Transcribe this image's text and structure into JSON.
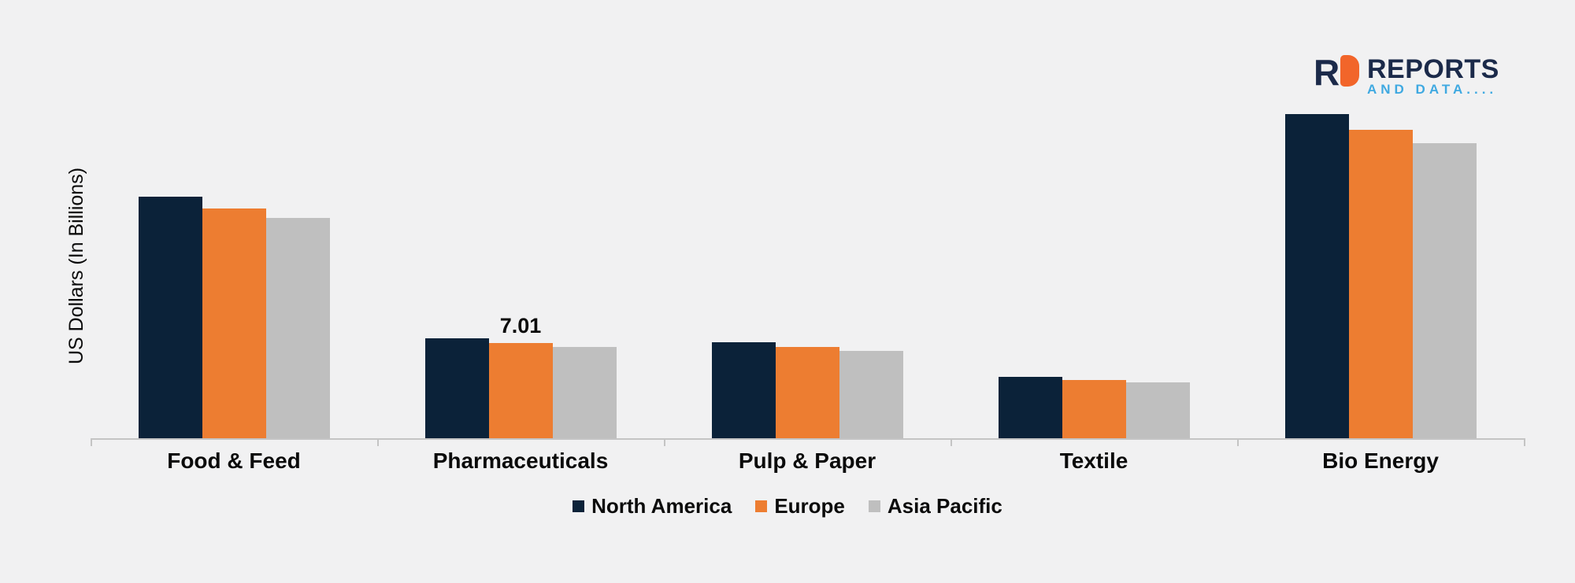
{
  "page": {
    "background": "#F1F1F2"
  },
  "logo": {
    "icon_letter": "R",
    "title": "REPORTS",
    "subtitle": "AND DATA",
    "subtitle_dots": "....",
    "navy": "#1B2A4A",
    "blue": "#3FA9E1",
    "orange": "#F2652A"
  },
  "chart_data": {
    "type": "bar",
    "title": "",
    "xlabel": "",
    "ylabel": "US Dollars (In Billions)",
    "categories": [
      "Food & Feed",
      "Pharmaceuticals",
      "Pulp & Paper",
      "Textile",
      "Bio Energy"
    ],
    "series": [
      {
        "name": "North America",
        "color": "#0B2239",
        "values": [
          17.7,
          7.35,
          7.07,
          4.54,
          23.73
        ]
      },
      {
        "name": "Europe",
        "color": "#ED7D31",
        "values": [
          16.84,
          7.01,
          6.72,
          4.31,
          22.58
        ]
      },
      {
        "name": "Asia Pacific",
        "color": "#BFBFBF",
        "values": [
          16.15,
          6.72,
          6.44,
          4.14,
          21.6
        ]
      }
    ],
    "annotations": [
      {
        "category": "Pharmaceuticals",
        "series": "Europe",
        "text": "7.01"
      }
    ],
    "ylim": [
      0,
      32
    ],
    "grid": false,
    "y_tick_labels_visible": false,
    "legend_position": "bottom",
    "axis_color": "#C4C4C4",
    "label_color": "#0B0B0B"
  }
}
